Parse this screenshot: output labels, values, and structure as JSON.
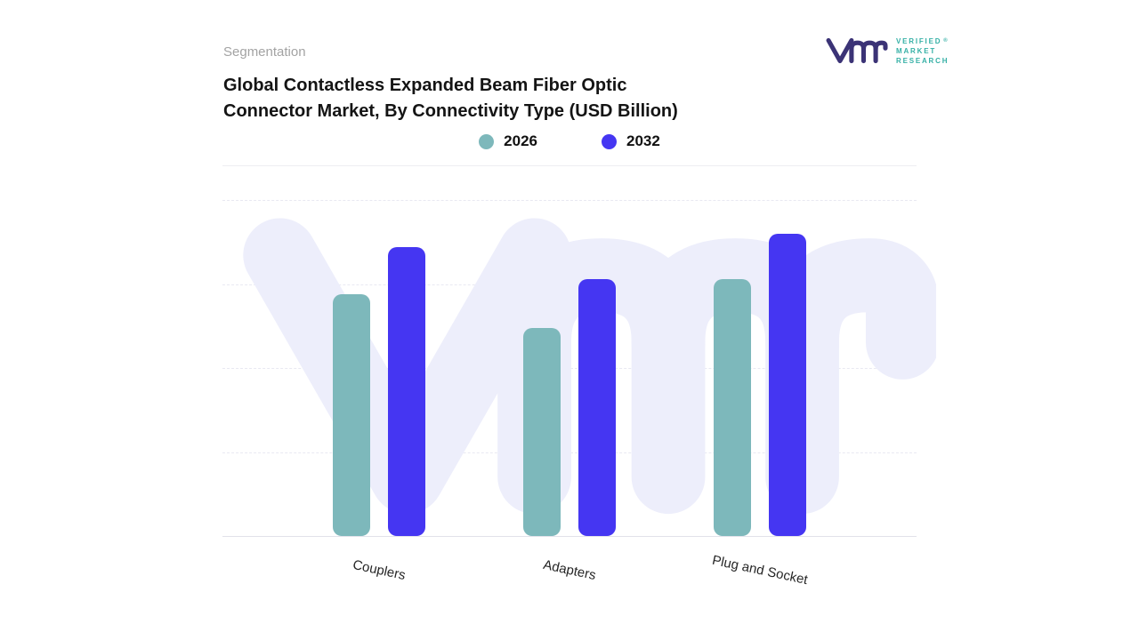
{
  "header": {
    "eyebrow": "Segmentation",
    "title": "Global Contactless Expanded Beam Fiber Optic Connector Market, By Connectivity Type (USD Billion)"
  },
  "logo": {
    "monogram": "vmr",
    "lines": [
      "VERIFIED",
      "MARKET",
      "RESEARCH"
    ],
    "registered": "®",
    "monogram_color": "#3b3376",
    "text_color": "#35b0a6"
  },
  "legend": [
    {
      "label": "2026",
      "color": "#7db8bb"
    },
    {
      "label": "2032",
      "color": "#4536f2"
    }
  ],
  "chart_data": {
    "type": "bar",
    "title": "Global Contactless Expanded Beam Fiber Optic Connector Market, By Connectivity Type (USD Billion)",
    "categories": [
      "Couplers",
      "Adapters",
      "Plug and Socket"
    ],
    "series": [
      {
        "name": "2026",
        "color": "#7db8bb",
        "values": [
          7.2,
          6.2,
          7.65
        ]
      },
      {
        "name": "2032",
        "color": "#4536f2",
        "values": [
          8.6,
          7.65,
          9.0
        ]
      }
    ],
    "xlabel": "",
    "ylabel": "",
    "ylim": [
      0,
      10
    ],
    "grid": "horizontal-dashed",
    "legend_position": "top-center",
    "watermark": "vm",
    "watermark_color": "#edeefb"
  }
}
